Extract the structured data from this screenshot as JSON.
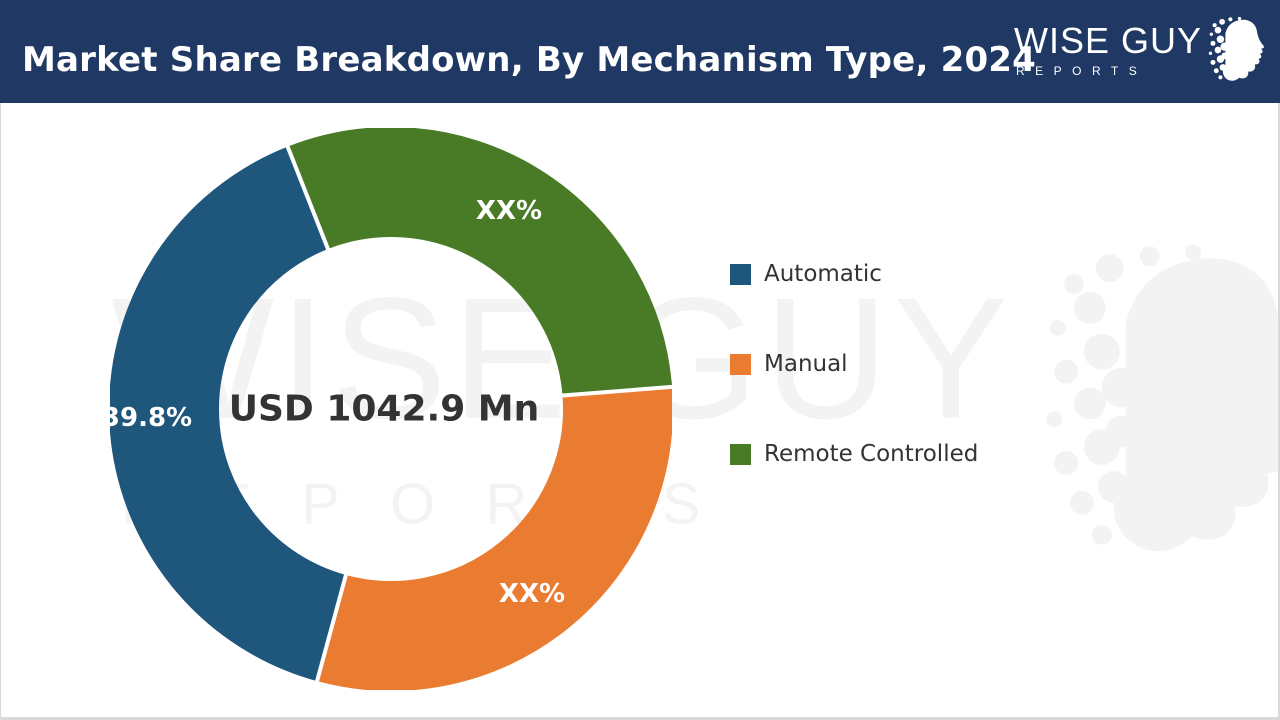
{
  "header": {
    "title": "Market Share Breakdown, By Mechanism Type, 2024",
    "brand": {
      "line1": "WISE GUY",
      "line2": "REPORTS"
    }
  },
  "watermark": {
    "line1": "WISE GUY",
    "line2": "REPORTS"
  },
  "chart_data": {
    "type": "pie",
    "subtype": "donut",
    "title": "Market Share Breakdown, By Mechanism Type, 2024",
    "center_label": "USD 1042.9 Mn",
    "hole_ratio": 0.615,
    "legend_position": "right",
    "separator_color": "#ffffff",
    "separator_degs": [
      85.5,
      195.2,
      338.5
    ],
    "segments": [
      {
        "name": "Automatic",
        "label": "39.8%",
        "share_pct": 39.8,
        "estimated": false,
        "color": "#1f567b",
        "start_deg": 195.2,
        "end_deg": 338.5
      },
      {
        "name": "Manual",
        "label": "XX%",
        "share_pct": 30.5,
        "estimated": true,
        "color": "#ea7c31",
        "start_deg": 85.5,
        "end_deg": 195.2
      },
      {
        "name": "Remote Controlled",
        "label": "XX%",
        "share_pct": 29.7,
        "estimated": true,
        "color": "#497b27",
        "start_deg": 338.5,
        "end_deg": 445.5
      }
    ]
  },
  "colors": {
    "header_bg": "#1f3864",
    "page_bg": "#ffffff",
    "title_text": "#ffffff",
    "center_text": "#333333",
    "legend_text": "#333333",
    "watermark": "#f3f3f3",
    "border_line": "#d9d9d9"
  }
}
